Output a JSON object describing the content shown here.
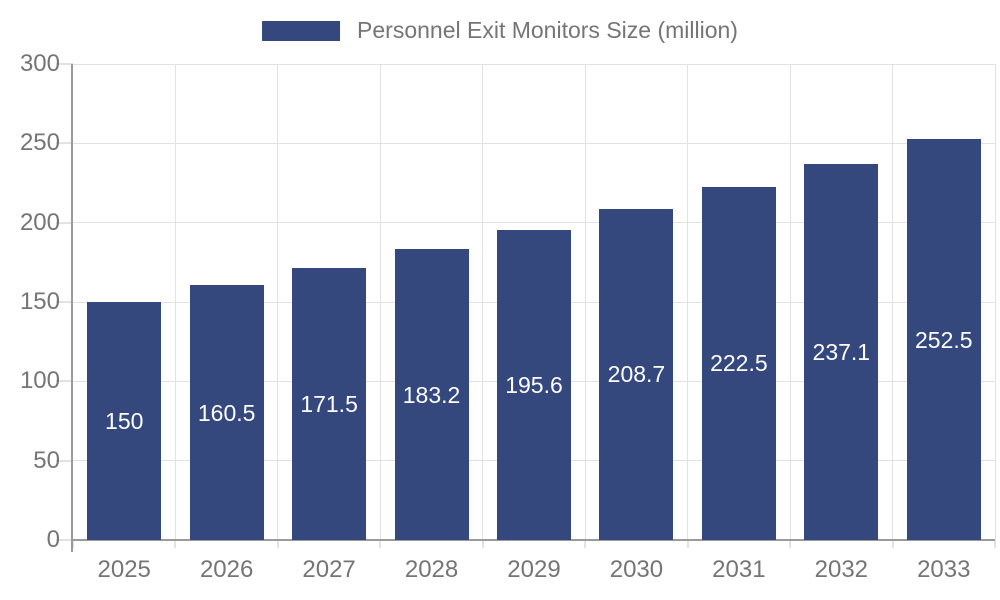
{
  "chart_data": {
    "type": "bar",
    "title": "Personnel Exit Monitors Size (million)",
    "categories": [
      "2025",
      "2026",
      "2027",
      "2028",
      "2029",
      "2030",
      "2031",
      "2032",
      "2033"
    ],
    "values": [
      150,
      160.5,
      171.5,
      183.2,
      195.6,
      208.7,
      222.5,
      237.1,
      252.5
    ],
    "value_labels": [
      "150",
      "160.5",
      "171.5",
      "183.2",
      "195.6",
      "208.7",
      "222.5",
      "237.1",
      "252.5"
    ],
    "xlabel": "",
    "ylabel": "",
    "ylim": [
      0,
      300
    ],
    "yticks": [
      0,
      50,
      100,
      150,
      200,
      250,
      300
    ],
    "grid": true,
    "legend_position": "top-center",
    "colors": {
      "bar": "#34487e",
      "value_label": "#ffffff",
      "axis_text": "#757575",
      "grid": "#e2e2e2",
      "spine": "#9a9a9a",
      "background": "#ffffff"
    }
  }
}
